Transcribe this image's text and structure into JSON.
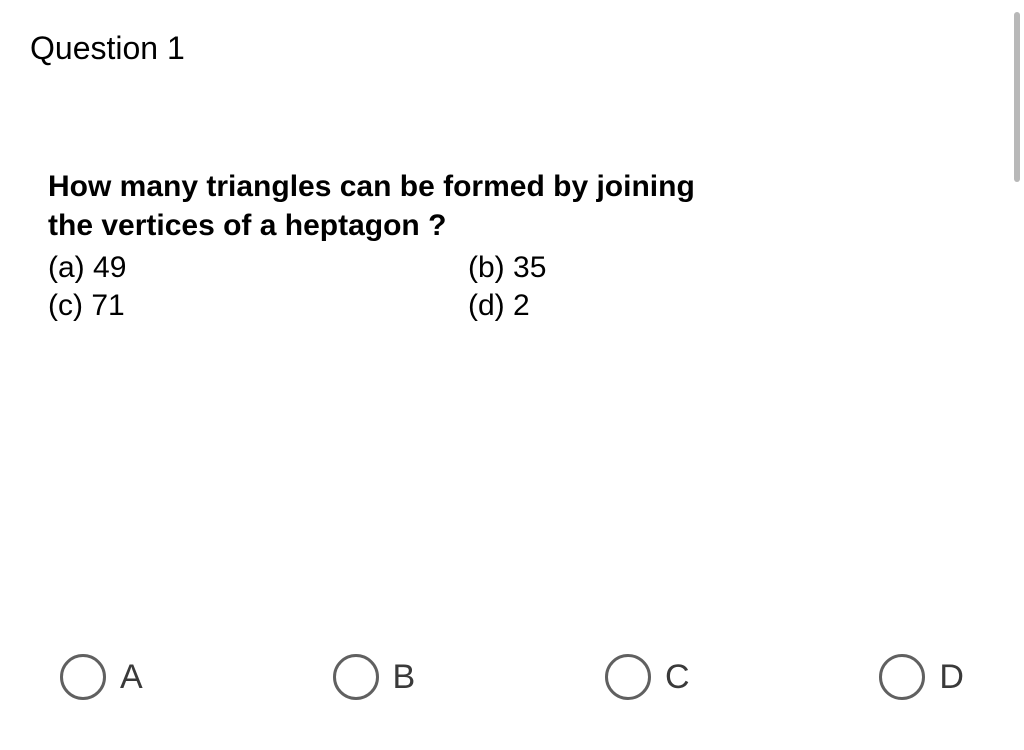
{
  "question": {
    "title": "Question 1",
    "text_line1": "How many triangles can be formed by joining",
    "text_line2": "the vertices of a heptagon ?",
    "options": {
      "a": {
        "prefix": "(a)",
        "value": "49"
      },
      "b": {
        "prefix": "(b)",
        "value": "35"
      },
      "c": {
        "prefix": "(c)",
        "value": "71"
      },
      "d": {
        "prefix": "(d)",
        "value": "2"
      }
    }
  },
  "answers": {
    "a": "A",
    "b": "B",
    "c": "C",
    "d": "D"
  },
  "style": {
    "background_color": "#ffffff",
    "text_color": "#000000",
    "radio_border_color": "#606060",
    "radio_label_color": "#3a3a3a",
    "scrollbar_color": "#b8b8b8",
    "title_fontsize": 32,
    "question_fontsize": 30,
    "radio_label_fontsize": 34,
    "radio_diameter": 46,
    "font_family": "Arial"
  }
}
